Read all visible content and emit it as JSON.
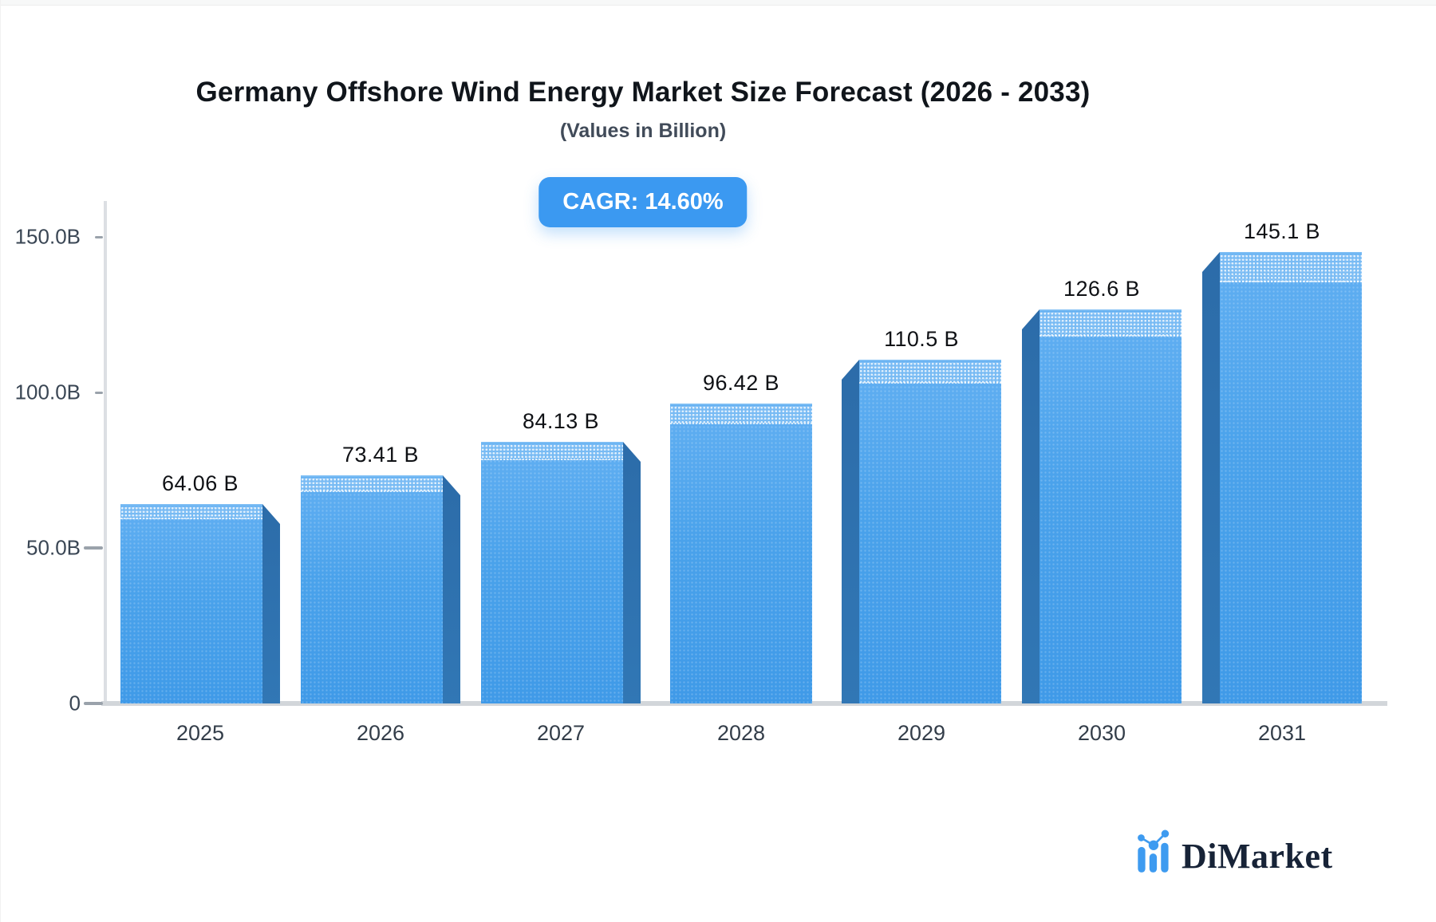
{
  "header": {
    "title": "Germany Offshore Wind Energy Market Size Forecast (2026 - 2033)",
    "subtitle": "(Values in Billion)",
    "cagr_badge": "CAGR: 14.60%"
  },
  "chart_data": {
    "type": "bar",
    "title": "Germany Offshore Wind Energy Market Size Forecast (2026 - 2033)",
    "subtitle": "(Values in Billion)",
    "cagr_percent": "14.60%",
    "categories": [
      "2025",
      "2026",
      "2027",
      "2028",
      "2029",
      "2030",
      "2031"
    ],
    "values": [
      64.06,
      73.41,
      84.13,
      96.42,
      110.5,
      126.6,
      145.1
    ],
    "value_labels": [
      "64.06 B",
      "73.41 B",
      "84.13 B",
      "96.42 B",
      "110.5 B",
      "126.6 B",
      "145.1 B"
    ],
    "xlabel": "",
    "ylabel": "",
    "ylim": [
      0,
      150
    ],
    "yticks": [
      {
        "value": 0,
        "label": "0",
        "major": true
      },
      {
        "value": 50,
        "label": "50.0B",
        "major": true
      },
      {
        "value": 100,
        "label": "100.0B",
        "major": false
      },
      {
        "value": 150,
        "label": "150.0B",
        "major": false
      }
    ],
    "grid": false,
    "legend": false,
    "bar_color": "#3f9ae8",
    "bar_side_color": "#2c6ca9",
    "badge_color": "#3b99f1"
  },
  "footer": {
    "logo_text": "DiMarket",
    "logo_icon": "mini-bar-chart-icon",
    "logo_accent": "#3e9bf0",
    "logo_text_color": "#172337"
  }
}
